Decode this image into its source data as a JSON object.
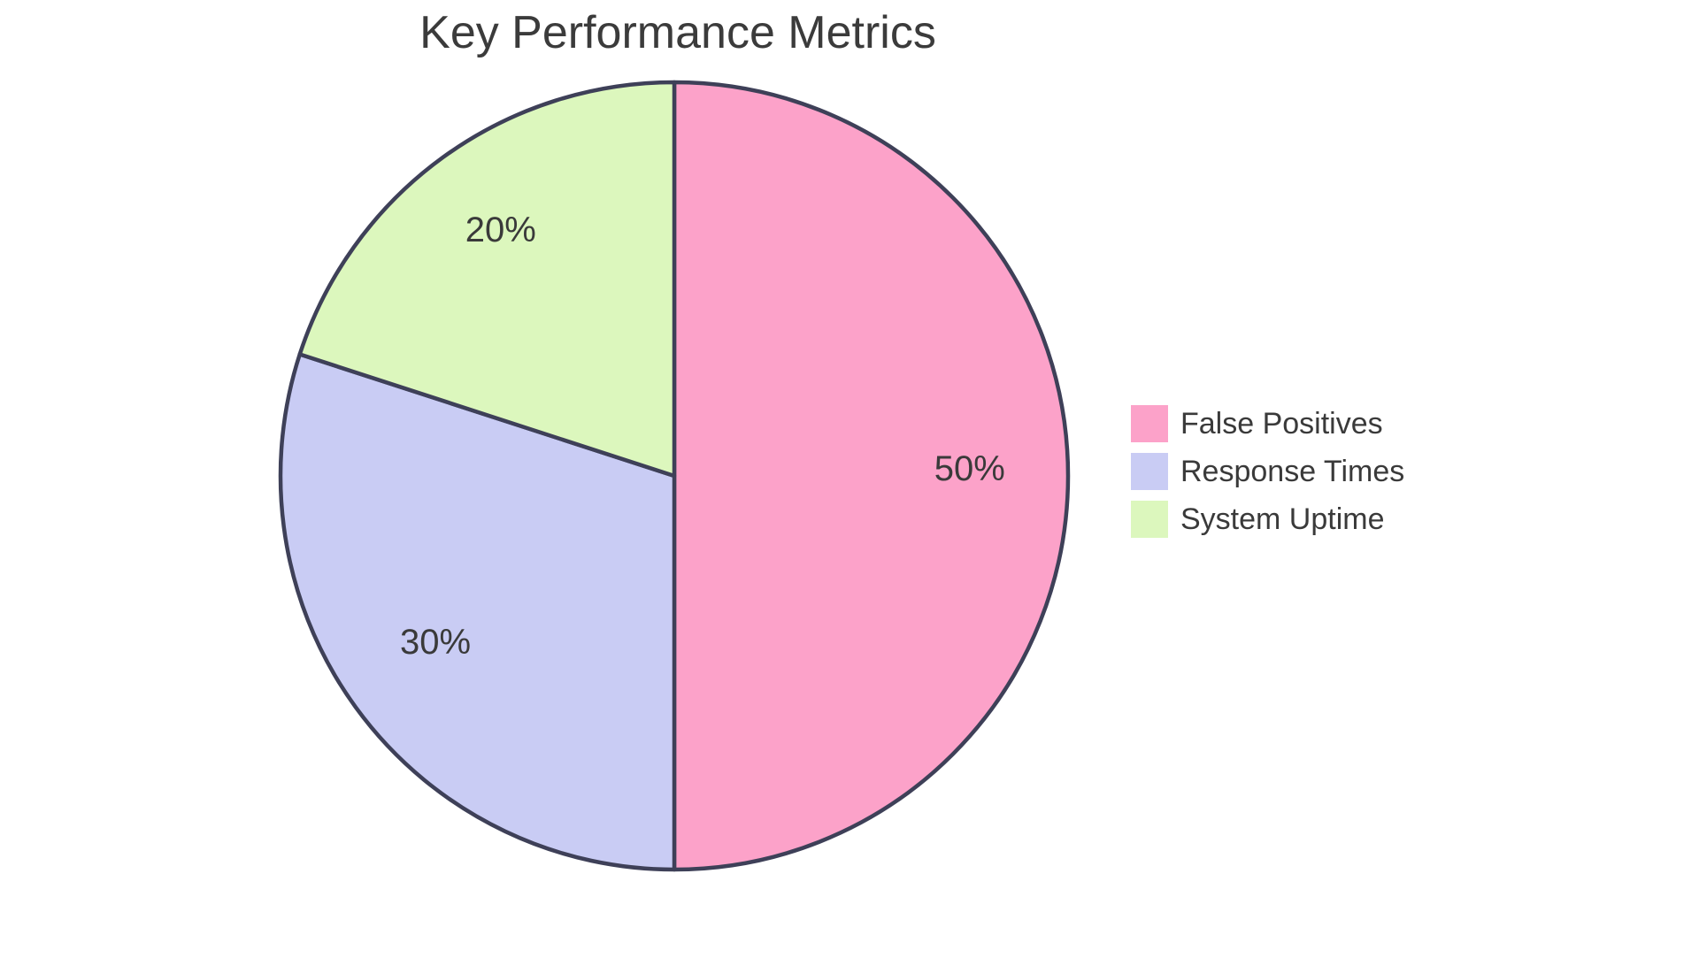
{
  "page": {
    "background_color": "#FFFFFF"
  },
  "chart_data": {
    "type": "pie",
    "title": "Key Performance Metrics",
    "labels": [
      "False Positives",
      "Response Times",
      "System Uptime"
    ],
    "values": [
      50,
      30,
      20
    ],
    "percent_labels": [
      "50%",
      "30%",
      "20%"
    ],
    "colors": [
      "#FCA2C9",
      "#C9CCF4",
      "#DCF7BD"
    ],
    "slice_border_color": "#3E4058",
    "text_color": "#3A3A3A",
    "title_color": "#3B3B3B",
    "legend_position": "right",
    "start_angle": "12 o'clock",
    "direction": "clockwise"
  }
}
